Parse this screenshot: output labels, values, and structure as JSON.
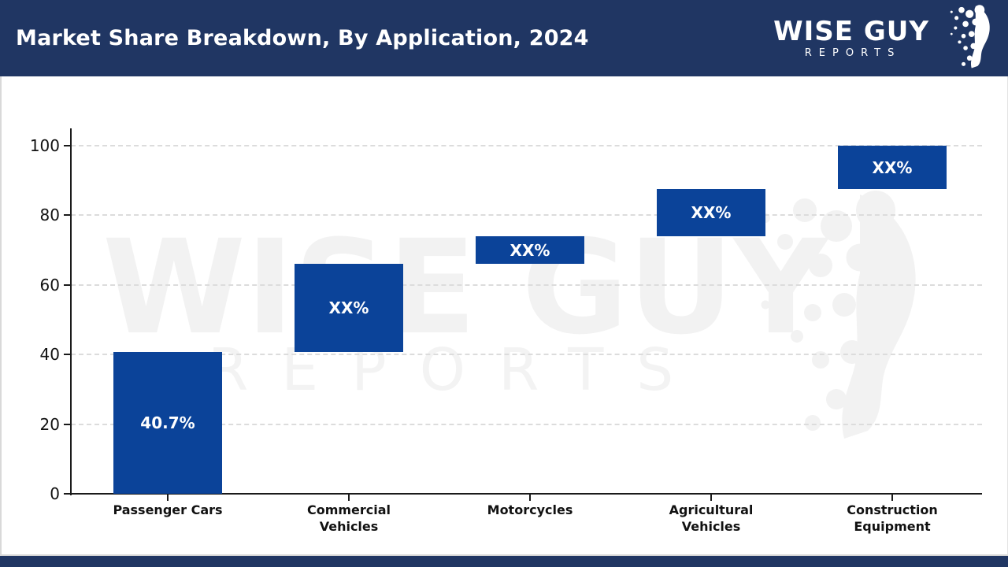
{
  "header": {
    "title": "Market Share Breakdown, By Application, 2024",
    "logo": {
      "line1": "WISE GUY",
      "line2": "REPORTS"
    }
  },
  "watermark": {
    "line1": "WISE GUY",
    "line2": "REPORTS"
  },
  "colors": {
    "header_bg": "#203663",
    "bar_blue": "#0b4399",
    "grid": "#dcdcdc",
    "watermark_gray": "#f2f2f2"
  },
  "chart_data": {
    "type": "bar",
    "subtype": "waterfall",
    "title": "Market Share Breakdown, By Application, 2024",
    "categories": [
      "Passenger Cars",
      "Commercial\nVehicles",
      "Motorcycles",
      "Agricultural\nVehicles",
      "Construction\nEquipment"
    ],
    "bars": [
      {
        "category": "Passenger Cars",
        "start": 0,
        "end": 40.7,
        "label": "40.7%"
      },
      {
        "category": "Commercial Vehicles",
        "start": 40.7,
        "end": 66.0,
        "label": "XX%"
      },
      {
        "category": "Motorcycles",
        "start": 66.0,
        "end": 74.0,
        "label": "XX%"
      },
      {
        "category": "Agricultural Vehicles",
        "start": 74.0,
        "end": 87.5,
        "label": "XX%"
      },
      {
        "category": "Construction Equipment",
        "start": 87.5,
        "end": 100,
        "label": "XX%"
      }
    ],
    "ylim": [
      0,
      100
    ],
    "yticks": [
      0,
      20,
      40,
      60,
      80,
      100
    ],
    "xlabel": "",
    "ylabel": "",
    "grid": "horizontal-dashed",
    "legend": "none",
    "bar_color": "#0b4399",
    "bar_label_color": "#ffffff"
  }
}
